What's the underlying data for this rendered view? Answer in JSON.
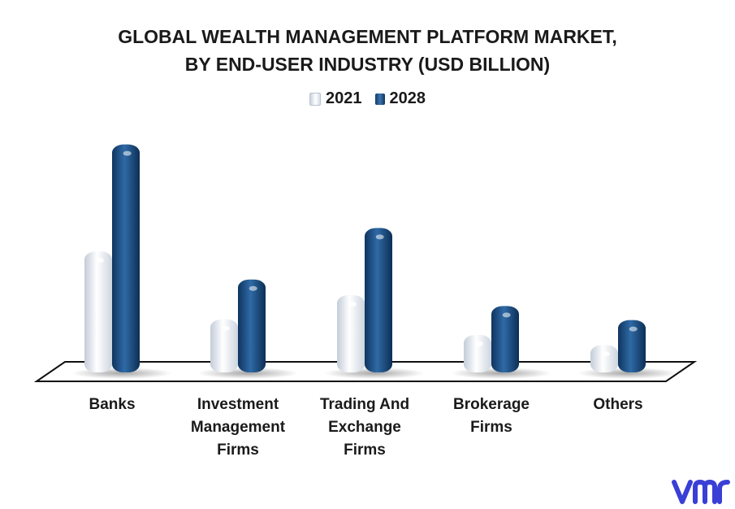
{
  "chart_data": {
    "type": "bar",
    "title": "GLOBAL WEALTH MANAGEMENT PLATFORM MARKET,\nBY END-USER INDUSTRY (USD BILLION)",
    "title_lines": [
      "GLOBAL WEALTH MANAGEMENT PLATFORM MARKET,",
      "BY END-USER INDUSTRY (USD BILLION)"
    ],
    "categories": [
      "Banks",
      "Investment Management Firms",
      "Trading And Exchange Firms",
      "Brokerage Firms",
      "Others"
    ],
    "category_lines": [
      [
        "Banks"
      ],
      [
        "Investment",
        "Management",
        "Firms"
      ],
      [
        "Trading And",
        "Exchange",
        "Firms"
      ],
      [
        "Brokerage",
        "Firms"
      ],
      [
        "Others"
      ]
    ],
    "series": [
      {
        "name": "2021",
        "values": [
          1.55,
          0.68,
          0.99,
          0.48,
          0.35
        ]
      },
      {
        "name": "2028",
        "values": [
          2.92,
          1.19,
          1.85,
          0.85,
          0.67
        ]
      }
    ],
    "ylim": [
      0,
      3.0
    ],
    "legend_position": "top-center",
    "grid": false,
    "xlabel": "",
    "ylabel": "",
    "colors": {
      "2021": "#e6ebf1",
      "2028": "#1f568f"
    }
  },
  "logo": {
    "icon": "vmr-logo-icon",
    "color": "#3a3fd6"
  }
}
